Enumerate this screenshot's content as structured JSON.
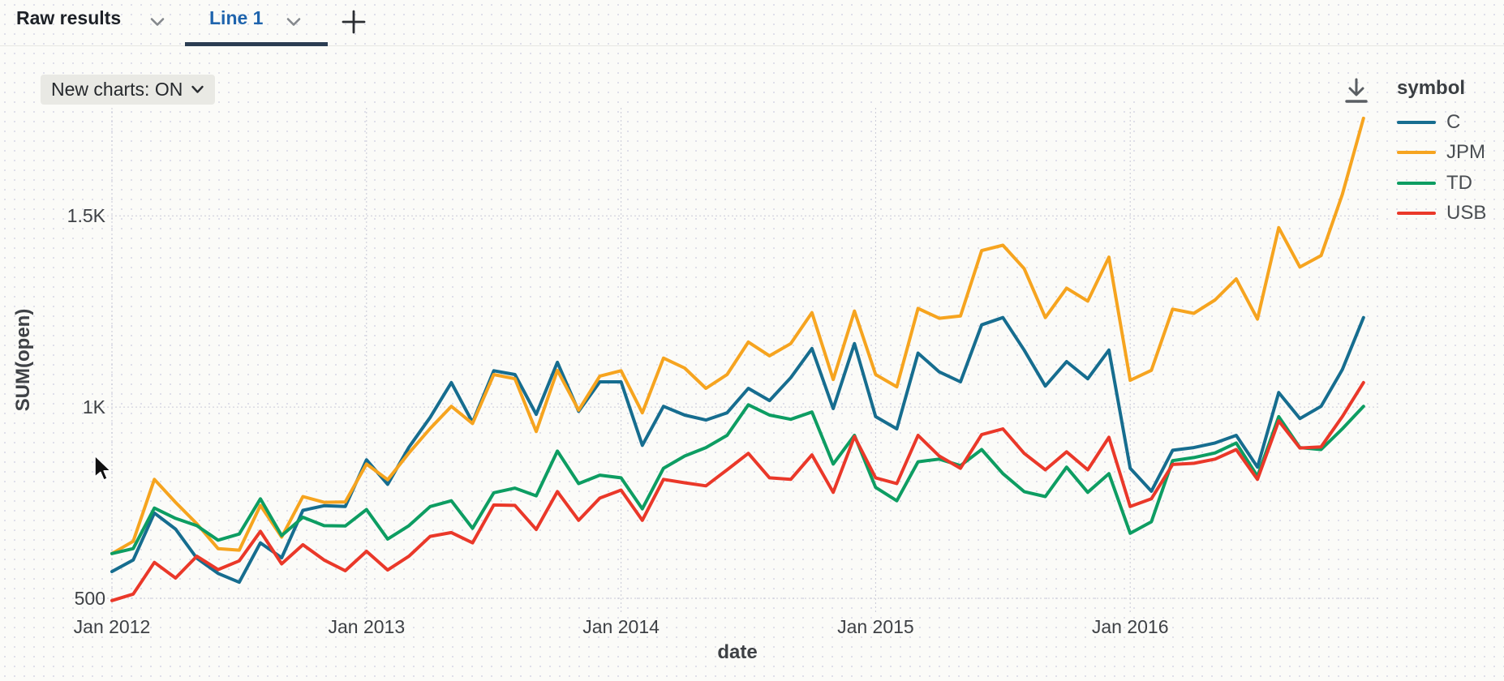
{
  "tabs": {
    "raw_results": "Raw results",
    "active_tab": "Line 1"
  },
  "toolbar": {
    "new_charts_label": "New charts: ON"
  },
  "legend": {
    "title": "symbol",
    "items": [
      {
        "label": "C",
        "color": "#166d8f"
      },
      {
        "label": "JPM",
        "color": "#f6a41f"
      },
      {
        "label": "TD",
        "color": "#0d9d62"
      },
      {
        "label": "USB",
        "color": "#ea3829"
      }
    ]
  },
  "chart_data": {
    "type": "line",
    "title": "",
    "xlabel": "date",
    "ylabel": "SUM(open)",
    "legend_position": "top-right",
    "grid": "dotted",
    "ylim": [
      450,
      1820
    ],
    "y_tick_values": [
      500,
      1000,
      1500
    ],
    "y_tick_labels": [
      "500",
      "1K",
      "1.5K"
    ],
    "x_tick_months": [
      0,
      12,
      24,
      36,
      48
    ],
    "x_tick_labels": [
      "Jan 2012",
      "Jan 2013",
      "Jan 2014",
      "Jan 2015",
      "Jan 2016"
    ],
    "x": [
      "2012-01",
      "2012-02",
      "2012-03",
      "2012-04",
      "2012-05",
      "2012-06",
      "2012-07",
      "2012-08",
      "2012-09",
      "2012-10",
      "2012-11",
      "2012-12",
      "2013-01",
      "2013-02",
      "2013-03",
      "2013-04",
      "2013-05",
      "2013-06",
      "2013-07",
      "2013-08",
      "2013-09",
      "2013-10",
      "2013-11",
      "2013-12",
      "2014-01",
      "2014-02",
      "2014-03",
      "2014-04",
      "2014-05",
      "2014-06",
      "2014-07",
      "2014-08",
      "2014-09",
      "2014-10",
      "2014-11",
      "2014-12",
      "2015-01",
      "2015-02",
      "2015-03",
      "2015-04",
      "2015-05",
      "2015-06",
      "2015-07",
      "2015-08",
      "2015-09",
      "2015-10",
      "2015-11",
      "2015-12",
      "2016-01",
      "2016-02",
      "2016-03",
      "2016-04",
      "2016-05",
      "2016-06",
      "2016-07",
      "2016-08",
      "2016-09",
      "2016-10",
      "2016-11",
      "2016-12"
    ],
    "series": [
      {
        "name": "C",
        "color": "#166d8f",
        "values": [
          570,
          600,
          723,
          681,
          605,
          565,
          542,
          645,
          606,
          730,
          742,
          740,
          862,
          798,
          895,
          973,
          1064,
          960,
          1095,
          1085,
          981,
          1117,
          989,
          1066,
          1066,
          900,
          1002,
          979,
          966,
          985,
          1049,
          1017,
          1077,
          1153,
          996,
          1166,
          975,
          943,
          1141,
          1092,
          1066,
          1215,
          1234,
          1149,
          1055,
          1119,
          1074,
          1149,
          840,
          780,
          887,
          894,
          906,
          926,
          843,
          1038,
          970,
          1002,
          1098,
          1234
        ]
      },
      {
        "name": "JPM",
        "color": "#f6a41f",
        "values": [
          617,
          649,
          811,
          751,
          695,
          630,
          626,
          743,
          660,
          766,
          751,
          752,
          851,
          810,
          880,
          944,
          1002,
          957,
          1085,
          1074,
          936,
          1096,
          992,
          1081,
          1095,
          985,
          1128,
          1102,
          1049,
          1085,
          1170,
          1134,
          1166,
          1247,
          1072,
          1251,
          1085,
          1053,
          1258,
          1232,
          1238,
          1409,
          1423,
          1362,
          1234,
          1311,
          1277,
          1392,
          1070,
          1096,
          1256,
          1245,
          1280,
          1335,
          1230,
          1469,
          1366,
          1396,
          1556,
          1755
        ]
      },
      {
        "name": "TD",
        "color": "#0d9d62",
        "values": [
          617,
          630,
          736,
          709,
          690,
          652,
          668,
          760,
          664,
          712,
          690,
          689,
          732,
          655,
          690,
          740,
          755,
          683,
          776,
          788,
          768,
          885,
          800,
          822,
          815,
          734,
          840,
          872,
          894,
          926,
          1006,
          979,
          968,
          987,
          851,
          926,
          790,
          755,
          857,
          864,
          847,
          889,
          826,
          779,
          766,
          843,
          777,
          826,
          670,
          700,
          860,
          868,
          880,
          906,
          819,
          975,
          894,
          889,
          943,
          1002
        ]
      },
      {
        "name": "USB",
        "color": "#ea3829",
        "values": [
          494,
          511,
          594,
          553,
          610,
          575,
          598,
          675,
          590,
          640,
          600,
          572,
          623,
          574,
          610,
          662,
          672,
          645,
          744,
          743,
          680,
          779,
          704,
          762,
          783,
          704,
          811,
          802,
          794,
          836,
          879,
          815,
          811,
          875,
          777,
          923,
          815,
          800,
          926,
          872,
          840,
          928,
          943,
          879,
          836,
          883,
          836,
          921,
          740,
          760,
          850,
          853,
          864,
          889,
          811,
          964,
          893,
          896,
          975,
          1064
        ]
      }
    ]
  }
}
